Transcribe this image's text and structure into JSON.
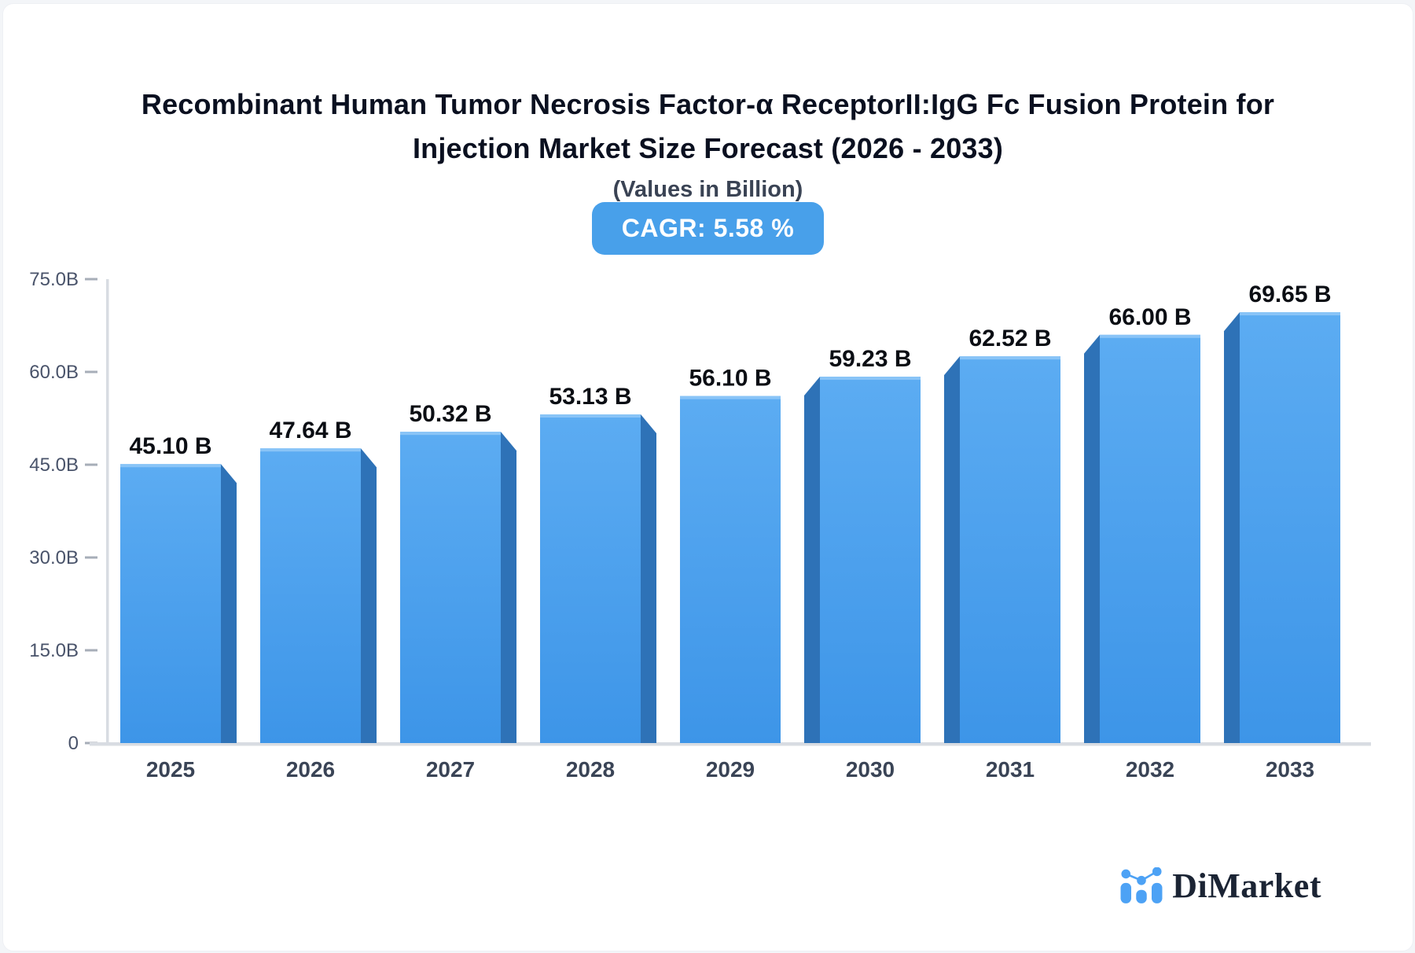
{
  "header": {
    "title_line1": "Recombinant Human Tumor Necrosis Factor-α ReceptorII:IgG Fc Fusion Protein for",
    "title_line2": "Injection Market Size Forecast (2026 - 2033)",
    "subtitle": "(Values in Billion)",
    "cagr_label": "CAGR: 5.58 %"
  },
  "chart_data": {
    "type": "bar",
    "title": "Recombinant Human Tumor Necrosis Factor-α ReceptorII:IgG Fc Fusion Protein for Injection Market Size Forecast (2026 - 2033)",
    "subtitle": "(Values in Billion)",
    "categories": [
      "2025",
      "2026",
      "2027",
      "2028",
      "2029",
      "2030",
      "2031",
      "2032",
      "2033"
    ],
    "values": [
      45.1,
      47.64,
      50.32,
      53.13,
      56.1,
      59.23,
      62.52,
      66.0,
      69.65
    ],
    "value_labels": [
      "45.10 B",
      "47.64 B",
      "50.32 B",
      "53.13 B",
      "56.10 B",
      "59.23 B",
      "62.52 B",
      "66.00 B",
      "69.65 B"
    ],
    "y_ticks": [
      "0",
      "15.0B",
      "30.0B",
      "45.0B",
      "60.0B",
      "75.0B"
    ],
    "ylim": [
      0,
      75
    ],
    "xlabel": "",
    "ylabel": "",
    "grid": false,
    "legend": "none",
    "cagr": "5.58 %"
  },
  "branding": {
    "logo_text": "DiMarket"
  },
  "colors": {
    "bar_face_top": "#5cacf2",
    "bar_face_bottom": "#3d95e8",
    "bar_side": "#2e72b7",
    "bar_top_highlight": "#8ec6f7",
    "badge_bg": "#48a0ea",
    "axis_line": "#d8dce2",
    "tick_dash": "#a7aeb8",
    "logo_blue": "#4da2f5",
    "logo_navy": "#1b2434"
  }
}
